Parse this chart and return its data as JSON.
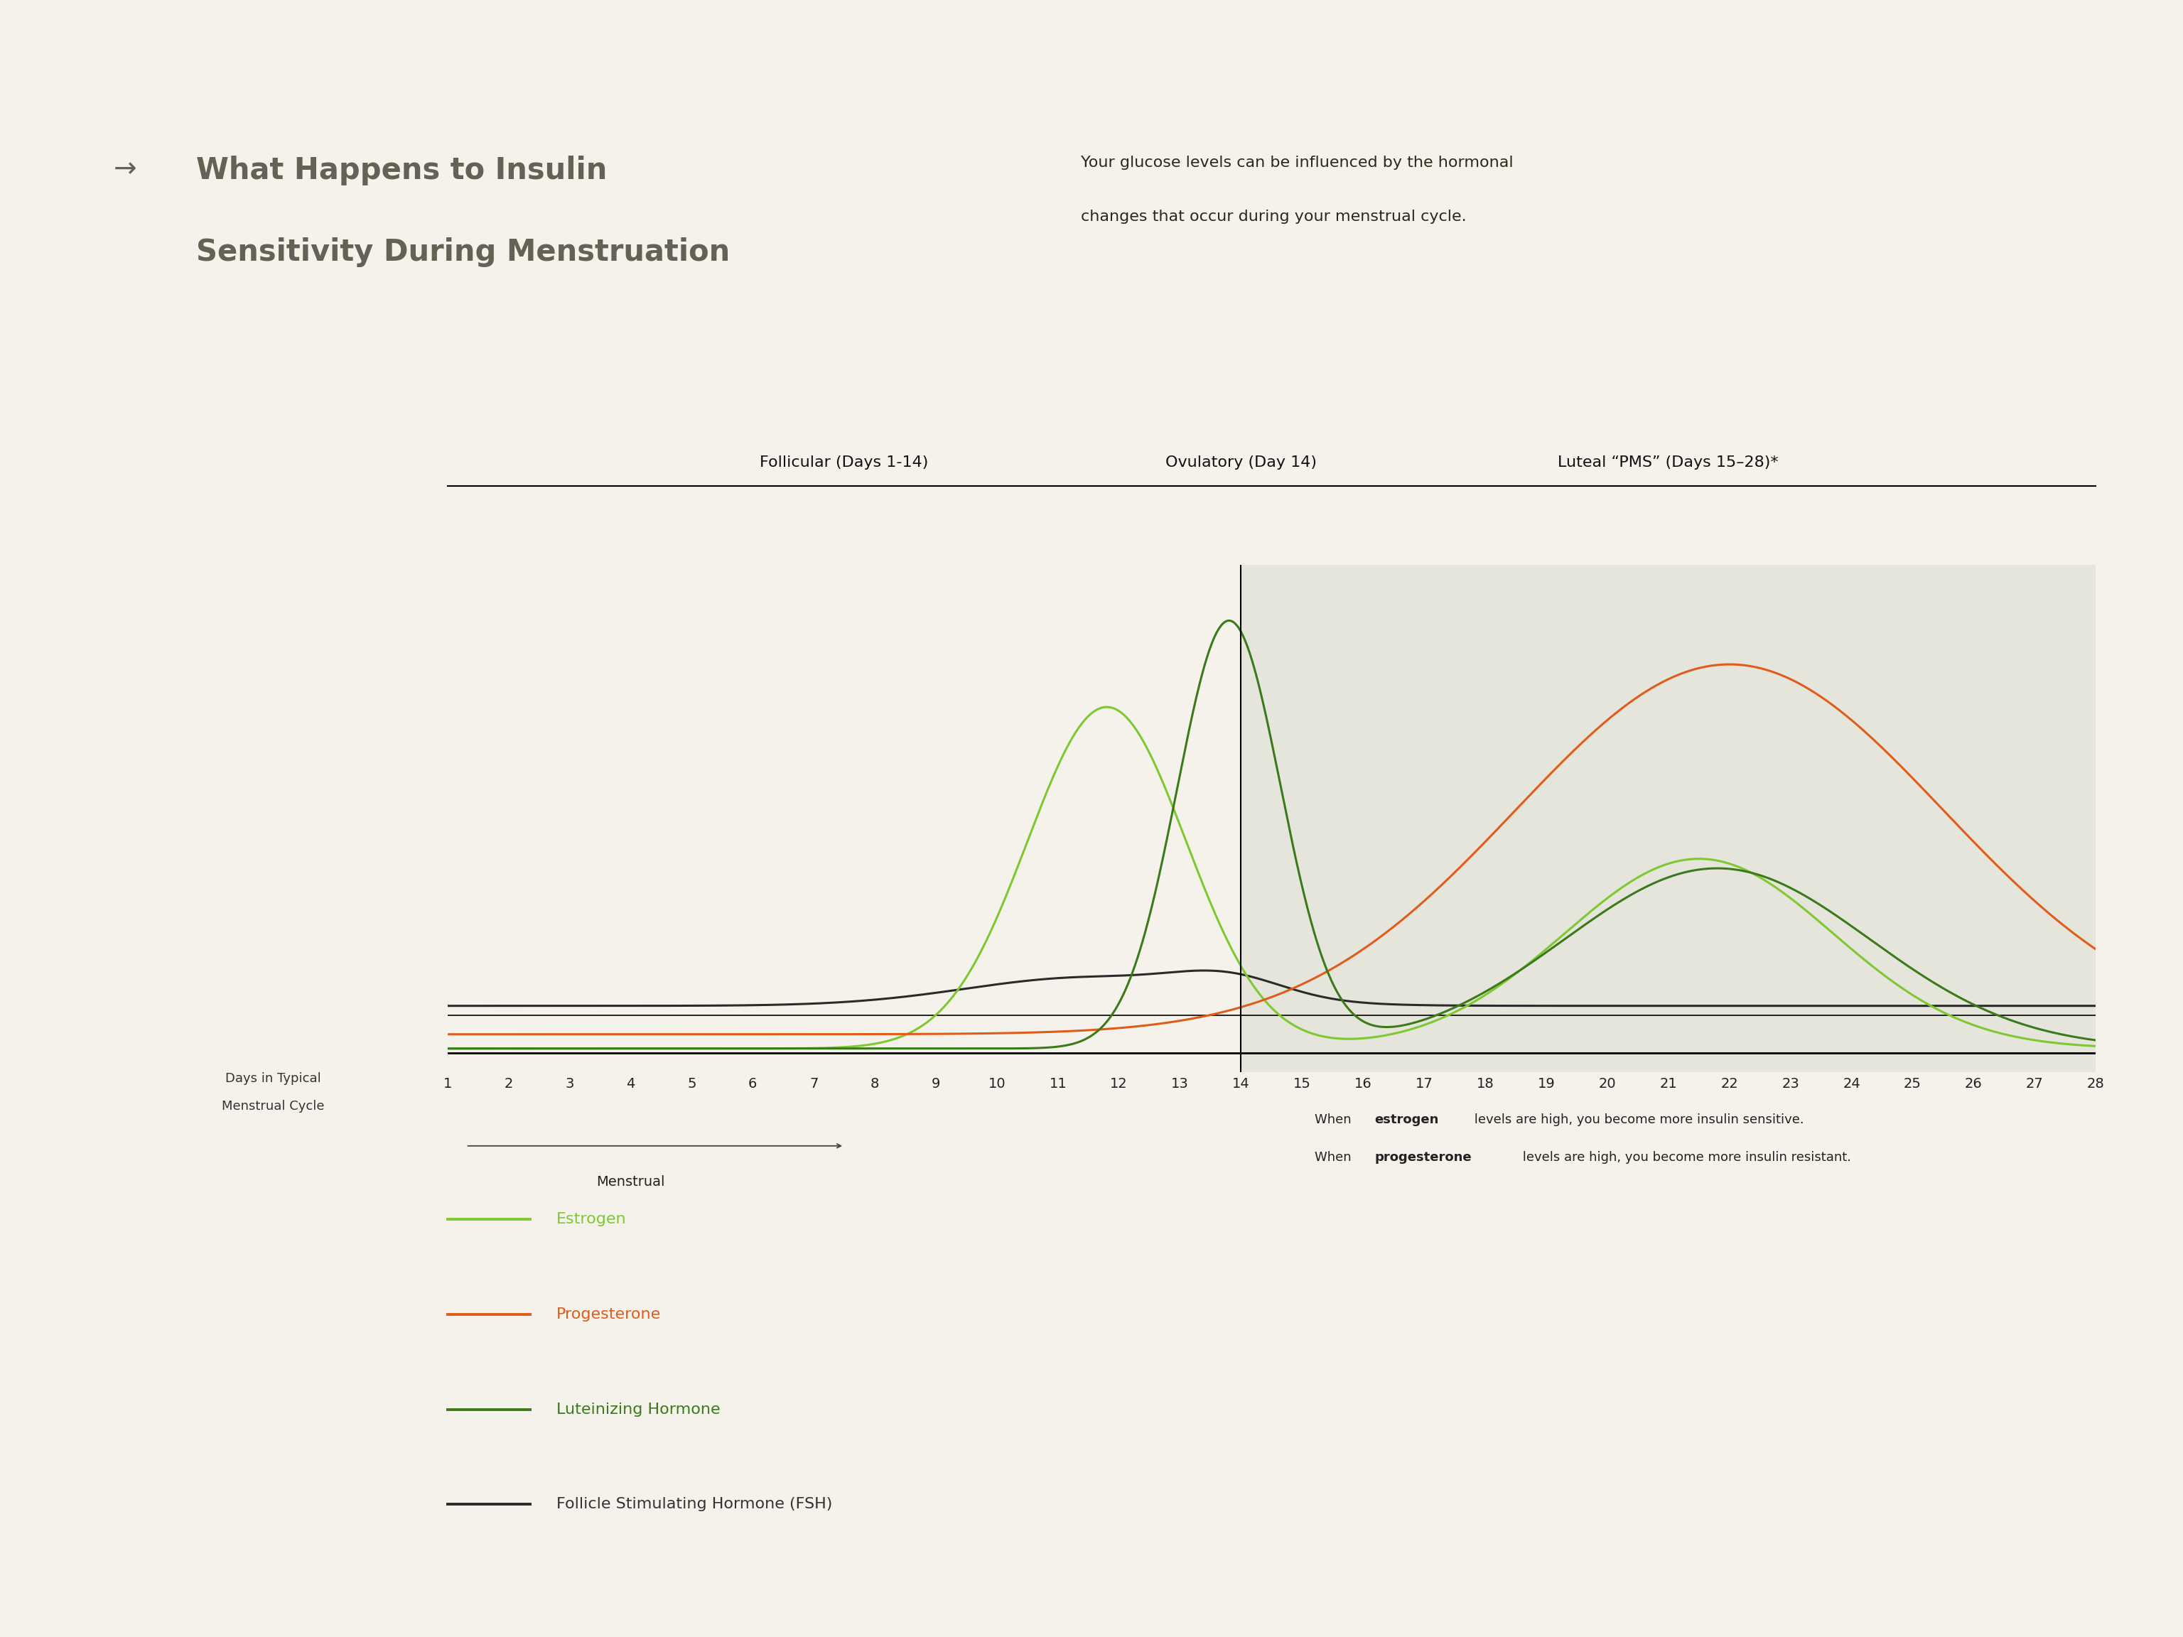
{
  "bg_color": "#f5f2eb",
  "chart_bg_color": "#f5f2eb",
  "luteal_bg_color": "#e6e5dc",
  "title_line1": "What Happens to Insulin",
  "title_line2": "Sensitivity During Menstruation",
  "subtitle_line1": "Your glucose levels can be influenced by the hormonal",
  "subtitle_line2": "changes that occur during your menstrual cycle.",
  "title_color": "#636355",
  "subtitle_color": "#2a2a1a",
  "phase_labels": [
    "Follicular (Days 1-14)",
    "Ovulatory (Day 14)",
    "Luteal “PMS” (Days 15–28)*"
  ],
  "phase_label_color": "#111111",
  "x_label_line1": "Days in Typical",
  "x_label_line2": "Menstrual Cycle",
  "x_ticks": [
    1,
    2,
    3,
    4,
    5,
    6,
    7,
    8,
    9,
    10,
    11,
    12,
    13,
    14,
    15,
    16,
    17,
    18,
    19,
    20,
    21,
    22,
    23,
    24,
    25,
    26,
    27,
    28
  ],
  "menstrual_label": "Menstrual",
  "note_line1_pre": "When ",
  "note_line1_bold": "estrogen",
  "note_line1_post": " levels are high, you become more insulin sensitive.",
  "note_line2_pre": "When ",
  "note_line2_bold": "progesterone",
  "note_line2_post": " levels are high, you become more insulin resistant.",
  "estrogen_color": "#7ec832",
  "progesterone_color": "#e05c1a",
  "lh_color": "#3a7a1a",
  "fsh_color": "#2a2a2a",
  "legend_items": [
    {
      "label": "Estrogen",
      "color": "#7ec832"
    },
    {
      "label": "Progesterone",
      "color": "#e05c1a"
    },
    {
      "label": "Luteinizing Hormone",
      "color": "#3a7a1a"
    },
    {
      "label": "Follicle Stimulating Hormone (FSH)",
      "color": "#2a2a2a"
    }
  ]
}
